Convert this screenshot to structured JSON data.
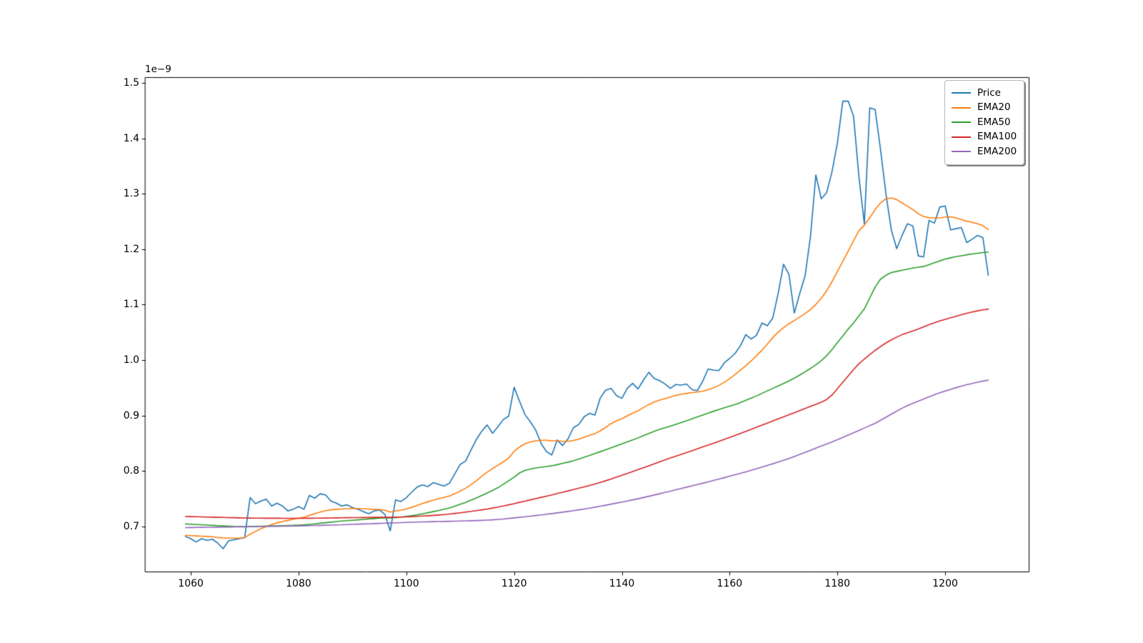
{
  "axes": {
    "offset_label": "1e−9",
    "xlim": [
      1051.5,
      1215.5
    ],
    "ylim": [
      0.6187,
      1.5103
    ],
    "xticks": [
      1060,
      1080,
      1100,
      1120,
      1140,
      1160,
      1180,
      1200
    ],
    "xticklabels": [
      "1060",
      "1080",
      "1100",
      "1120",
      "1140",
      "1160",
      "1180",
      "1200"
    ],
    "yticks": [
      0.7,
      0.8,
      0.9,
      1.0,
      1.1,
      1.2,
      1.3,
      1.4,
      1.5
    ],
    "yticklabels": [
      "0.7",
      "0.8",
      "0.9",
      "1.0",
      "1.1",
      "1.2",
      "1.3",
      "1.4",
      "1.5"
    ],
    "spine_color": "#000000",
    "background": "#ffffff"
  },
  "legend": {
    "position": "upper-right",
    "entries": [
      {
        "label": "Price",
        "color": "#1f77b4"
      },
      {
        "label": "EMA20",
        "color": "#ff7f0e"
      },
      {
        "label": "EMA50",
        "color": "#2ca02c"
      },
      {
        "label": "EMA100",
        "color": "#d62728"
      },
      {
        "label": "EMA200",
        "color": "#9467bd"
      }
    ]
  },
  "chart_data": {
    "type": "line",
    "title": "",
    "xlabel": "",
    "ylabel": "",
    "y_unit_multiplier": "1e-9",
    "grid": false,
    "legend_position": "upper right",
    "xlim": [
      1051.5,
      1215.5
    ],
    "ylim": [
      0.6187,
      1.5103
    ],
    "x_start": 1059,
    "x_step": 1,
    "x_end": 1208,
    "series": [
      {
        "name": "Price",
        "color": "#1f77b4",
        "values": [
          0.682,
          0.678,
          0.672,
          0.678,
          0.675,
          0.677,
          0.67,
          0.66,
          0.674,
          0.676,
          0.678,
          0.68,
          0.752,
          0.741,
          0.746,
          0.749,
          0.737,
          0.742,
          0.737,
          0.728,
          0.731,
          0.736,
          0.731,
          0.756,
          0.751,
          0.759,
          0.757,
          0.746,
          0.742,
          0.737,
          0.739,
          0.734,
          0.731,
          0.727,
          0.723,
          0.728,
          0.73,
          0.722,
          0.692,
          0.748,
          0.745,
          0.752,
          0.762,
          0.771,
          0.775,
          0.772,
          0.779,
          0.776,
          0.773,
          0.778,
          0.795,
          0.812,
          0.818,
          0.838,
          0.857,
          0.872,
          0.883,
          0.868,
          0.88,
          0.893,
          0.899,
          0.951,
          0.926,
          0.902,
          0.889,
          0.874,
          0.85,
          0.835,
          0.829,
          0.856,
          0.846,
          0.858,
          0.878,
          0.884,
          0.898,
          0.904,
          0.901,
          0.932,
          0.946,
          0.949,
          0.936,
          0.931,
          0.949,
          0.958,
          0.948,
          0.964,
          0.978,
          0.967,
          0.963,
          0.957,
          0.949,
          0.956,
          0.955,
          0.957,
          0.947,
          0.945,
          0.962,
          0.984,
          0.982,
          0.981,
          0.995,
          1.003,
          1.012,
          1.026,
          1.046,
          1.038,
          1.045,
          1.067,
          1.062,
          1.076,
          1.12,
          1.173,
          1.155,
          1.085,
          1.12,
          1.152,
          1.223,
          1.334,
          1.291,
          1.302,
          1.34,
          1.392,
          1.467,
          1.467,
          1.44,
          1.33,
          1.246,
          1.455,
          1.452,
          1.38,
          1.3,
          1.235,
          1.201,
          1.225,
          1.246,
          1.242,
          1.188,
          1.186,
          1.252,
          1.247,
          1.276,
          1.278,
          1.235,
          1.237,
          1.239,
          1.212,
          1.218,
          1.225,
          1.221,
          1.153
        ]
      },
      {
        "name": "EMA20",
        "color": "#ff7f0e",
        "values": [
          0.684,
          0.6835,
          0.683,
          0.6825,
          0.682,
          0.6815,
          0.68,
          0.6795,
          0.679,
          0.679,
          0.679,
          0.68,
          0.686,
          0.691,
          0.696,
          0.7,
          0.7035,
          0.7065,
          0.709,
          0.711,
          0.713,
          0.715,
          0.7165,
          0.72,
          0.723,
          0.726,
          0.7285,
          0.73,
          0.731,
          0.7315,
          0.732,
          0.7325,
          0.7325,
          0.732,
          0.7315,
          0.731,
          0.7305,
          0.7295,
          0.726,
          0.728,
          0.7295,
          0.7315,
          0.7345,
          0.738,
          0.7415,
          0.7445,
          0.7475,
          0.75,
          0.7525,
          0.755,
          0.759,
          0.764,
          0.769,
          0.7755,
          0.7825,
          0.7905,
          0.798,
          0.8045,
          0.8105,
          0.8165,
          0.8235,
          0.8355,
          0.8435,
          0.849,
          0.8525,
          0.8545,
          0.8555,
          0.8555,
          0.8545,
          0.8545,
          0.8535,
          0.8535,
          0.855,
          0.8575,
          0.861,
          0.8645,
          0.8675,
          0.8725,
          0.879,
          0.8855,
          0.8905,
          0.8945,
          0.8995,
          0.9045,
          0.9085,
          0.9145,
          0.92,
          0.9245,
          0.928,
          0.9305,
          0.9335,
          0.9365,
          0.9385,
          0.94,
          0.9415,
          0.9425,
          0.944,
          0.9465,
          0.95,
          0.9545,
          0.96,
          0.9665,
          0.974,
          0.982,
          0.99,
          0.9985,
          1.008,
          1.018,
          1.029,
          1.0405,
          1.0505,
          1.0585,
          1.0655,
          1.0715,
          1.0775,
          1.084,
          1.0915,
          1.1005,
          1.1115,
          1.125,
          1.1415,
          1.16,
          1.178,
          1.1965,
          1.2155,
          1.2335,
          1.2435,
          1.2565,
          1.2715,
          1.2835,
          1.291,
          1.2925,
          1.2895,
          1.2835,
          1.2775,
          1.2715,
          1.264,
          1.259,
          1.257,
          1.2565,
          1.2565,
          1.258,
          1.2585,
          1.2565,
          1.2535,
          1.2505,
          1.2485,
          1.246,
          1.2425,
          1.2355
        ]
      },
      {
        "name": "EMA50",
        "color": "#2ca02c",
        "values": [
          0.7045,
          0.704,
          0.7035,
          0.703,
          0.7025,
          0.702,
          0.7015,
          0.701,
          0.7005,
          0.7,
          0.6998,
          0.6998,
          0.7,
          0.7002,
          0.7005,
          0.7008,
          0.701,
          0.7012,
          0.7015,
          0.7018,
          0.702,
          0.7025,
          0.703,
          0.7038,
          0.7048,
          0.7058,
          0.7068,
          0.7078,
          0.7088,
          0.7098,
          0.7105,
          0.7112,
          0.712,
          0.7128,
          0.7135,
          0.7142,
          0.715,
          0.7155,
          0.7155,
          0.716,
          0.717,
          0.7182,
          0.7195,
          0.721,
          0.7228,
          0.7248,
          0.7268,
          0.7288,
          0.731,
          0.7335,
          0.7365,
          0.74,
          0.7435,
          0.7475,
          0.7515,
          0.756,
          0.7605,
          0.765,
          0.77,
          0.776,
          0.7825,
          0.789,
          0.7965,
          0.801,
          0.8035,
          0.8055,
          0.8068,
          0.808,
          0.8095,
          0.8115,
          0.8138,
          0.816,
          0.8185,
          0.8215,
          0.8248,
          0.828,
          0.8315,
          0.835,
          0.8385,
          0.842,
          0.8455,
          0.849,
          0.8525,
          0.856,
          0.8598,
          0.8638,
          0.8678,
          0.8715,
          0.875,
          0.878,
          0.881,
          0.884,
          0.8872,
          0.8905,
          0.894,
          0.8975,
          0.901,
          0.9045,
          0.9078,
          0.911,
          0.914,
          0.917,
          0.92,
          0.9235,
          0.9275,
          0.9315,
          0.9355,
          0.94,
          0.9445,
          0.949,
          0.9535,
          0.958,
          0.9625,
          0.9675,
          0.973,
          0.979,
          0.985,
          0.9915,
          0.999,
          1.008,
          1.019,
          1.0315,
          1.0435,
          1.056,
          1.067,
          1.08,
          1.0925,
          1.112,
          1.132,
          1.146,
          1.153,
          1.158,
          1.16,
          1.162,
          1.164,
          1.166,
          1.1675,
          1.169,
          1.172,
          1.1755,
          1.179,
          1.182,
          1.1845,
          1.1865,
          1.1882,
          1.19,
          1.1915,
          1.1928,
          1.194,
          1.195
        ]
      },
      {
        "name": "EMA100",
        "color": "#d62728",
        "values": [
          0.718,
          0.7178,
          0.7175,
          0.7173,
          0.717,
          0.7168,
          0.7165,
          0.7163,
          0.716,
          0.7158,
          0.7155,
          0.7153,
          0.7152,
          0.7151,
          0.715,
          0.7149,
          0.7148,
          0.7148,
          0.7147,
          0.7147,
          0.7147,
          0.7147,
          0.7148,
          0.7149,
          0.715,
          0.7151,
          0.7152,
          0.7153,
          0.7155,
          0.7156,
          0.7158,
          0.7159,
          0.716,
          0.7161,
          0.7162,
          0.7164,
          0.7165,
          0.7165,
          0.7165,
          0.7168,
          0.717,
          0.7174,
          0.7178,
          0.7183,
          0.7188,
          0.7194,
          0.72,
          0.7207,
          0.7215,
          0.7225,
          0.7235,
          0.7247,
          0.726,
          0.7272,
          0.7285,
          0.73,
          0.7315,
          0.7332,
          0.735,
          0.737,
          0.739,
          0.7412,
          0.7435,
          0.7457,
          0.748,
          0.7502,
          0.7525,
          0.7547,
          0.757,
          0.7594,
          0.7618,
          0.7641,
          0.7665,
          0.769,
          0.7715,
          0.774,
          0.7765,
          0.7795,
          0.7825,
          0.7857,
          0.789,
          0.7922,
          0.7955,
          0.799,
          0.8025,
          0.806,
          0.8095,
          0.813,
          0.8165,
          0.82,
          0.8235,
          0.8267,
          0.83,
          0.8332,
          0.8365,
          0.84,
          0.8435,
          0.8467,
          0.85,
          0.8535,
          0.857,
          0.8605,
          0.864,
          0.8677,
          0.8715,
          0.8752,
          0.879,
          0.8827,
          0.8865,
          0.8902,
          0.894,
          0.8977,
          0.9015,
          0.9052,
          0.909,
          0.9127,
          0.9165,
          0.9202,
          0.924,
          0.929,
          0.937,
          0.9485,
          0.96,
          0.9715,
          0.983,
          0.9935,
          1.002,
          1.01,
          1.0175,
          1.0245,
          1.031,
          1.0365,
          1.0415,
          1.046,
          1.0495,
          1.0525,
          1.056,
          1.06,
          1.064,
          1.0675,
          1.0705,
          1.0735,
          1.0765,
          1.079,
          1.082,
          1.0845,
          1.0868,
          1.0888,
          1.0905,
          1.092
        ]
      },
      {
        "name": "EMA200",
        "color": "#9467bd",
        "values": [
          0.698,
          0.6981,
          0.6982,
          0.6984,
          0.6985,
          0.6986,
          0.6988,
          0.6989,
          0.699,
          0.6992,
          0.6993,
          0.6994,
          0.6995,
          0.6996,
          0.6998,
          0.7,
          0.7001,
          0.7003,
          0.7005,
          0.7007,
          0.7008,
          0.701,
          0.7013,
          0.7015,
          0.7018,
          0.702,
          0.7023,
          0.7025,
          0.7028,
          0.703,
          0.7035,
          0.7038,
          0.7042,
          0.7045,
          0.7048,
          0.7052,
          0.7055,
          0.7059,
          0.7062,
          0.7066,
          0.707,
          0.7073,
          0.7076,
          0.7079,
          0.7082,
          0.7084,
          0.7087,
          0.7089,
          0.7091,
          0.7094,
          0.7096,
          0.7098,
          0.7101,
          0.7103,
          0.7106,
          0.711,
          0.7115,
          0.712,
          0.7127,
          0.7135,
          0.7145,
          0.7155,
          0.7165,
          0.7175,
          0.7185,
          0.7197,
          0.7208,
          0.722,
          0.7232,
          0.7245,
          0.7258,
          0.7271,
          0.7285,
          0.73,
          0.7315,
          0.7331,
          0.7348,
          0.7366,
          0.7384,
          0.7403,
          0.7422,
          0.7441,
          0.746,
          0.748,
          0.75,
          0.7522,
          0.7545,
          0.7567,
          0.759,
          0.7613,
          0.7637,
          0.7661,
          0.7685,
          0.7709,
          0.7733,
          0.7756,
          0.778,
          0.7805,
          0.783,
          0.7855,
          0.788,
          0.7906,
          0.7932,
          0.7958,
          0.7985,
          0.8013,
          0.8042,
          0.8071,
          0.81,
          0.8131,
          0.8162,
          0.8193,
          0.8225,
          0.8262,
          0.83,
          0.8337,
          0.8375,
          0.8412,
          0.845,
          0.8487,
          0.8525,
          0.8565,
          0.8607,
          0.8648,
          0.869,
          0.8732,
          0.8775,
          0.882,
          0.886,
          0.8915,
          0.897,
          0.9025,
          0.908,
          0.9133,
          0.918,
          0.9222,
          0.926,
          0.93,
          0.9338,
          0.9375,
          0.941,
          0.9442,
          0.9473,
          0.9503,
          0.953,
          0.9556,
          0.958,
          0.9602,
          0.9622,
          0.964
        ]
      }
    ]
  }
}
